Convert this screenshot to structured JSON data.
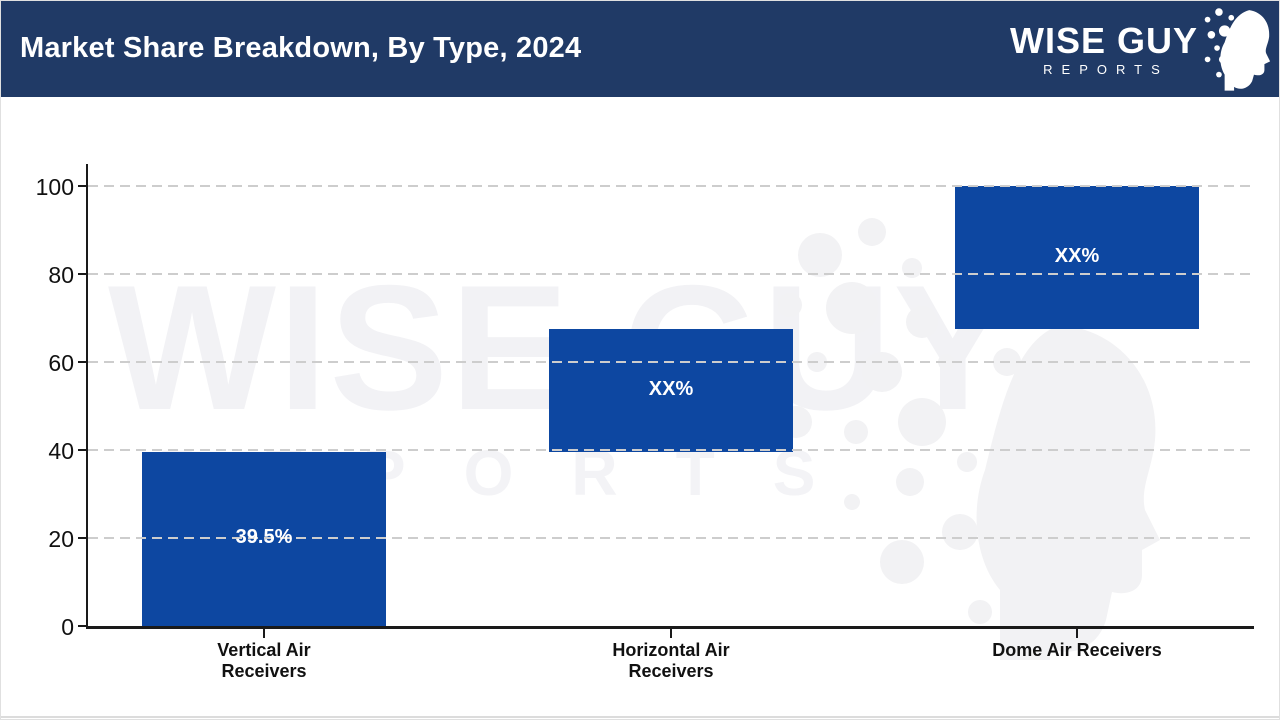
{
  "header": {
    "title": "Market Share Breakdown, By Type, 2024",
    "bg_color": "#203a66",
    "logo": {
      "brand": "WISE GUY",
      "sub": "REPORTS"
    }
  },
  "watermark": {
    "brand": "WISE GUY",
    "sub": "REPORTS"
  },
  "chart_data": {
    "type": "bar",
    "variant": "floating stacked-range bars (market share waterfall, segments sum to 100%)",
    "title": "Market Share Breakdown, By Type, 2024",
    "categories": [
      "Vertical Air Receivers",
      "Horizontal Air Receivers",
      "Dome Air Receivers"
    ],
    "category_lines": [
      [
        "Vertical Air",
        "Receivers"
      ],
      [
        "Horizontal Air",
        "Receivers"
      ],
      [
        "Dome Air Receivers",
        ""
      ]
    ],
    "segments": [
      {
        "category": "Vertical Air Receivers",
        "start": 0,
        "end": 39.5,
        "label": "39.5%"
      },
      {
        "category": "Horizontal Air Receivers",
        "start": 39.5,
        "end": 67.5,
        "label": "XX%"
      },
      {
        "category": "Dome Air Receivers",
        "start": 67.5,
        "end": 100,
        "label": "XX%"
      }
    ],
    "ylim": [
      0,
      100
    ],
    "yticks": [
      0,
      20,
      40,
      60,
      80,
      100
    ],
    "xlabel": "",
    "ylabel": "",
    "grid": "horizontal dashed gray",
    "legend": "none",
    "bar_color": "#0d47a1",
    "bar_label_color": "#ffffff"
  }
}
